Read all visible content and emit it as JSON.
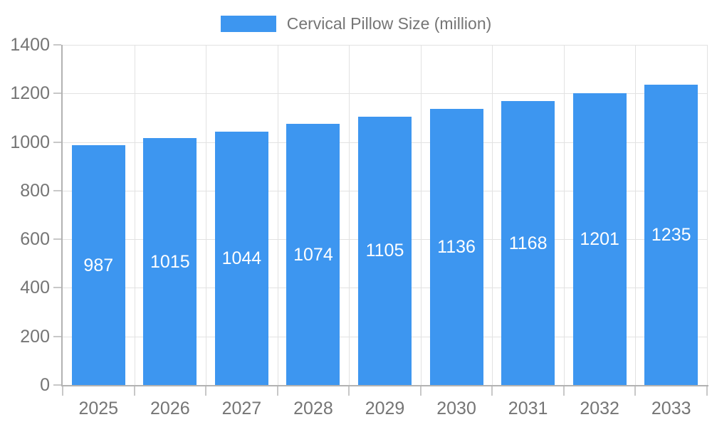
{
  "legend": {
    "label": "Cervical Pillow Size (million)",
    "swatch_color": "#3d96f0"
  },
  "chart_data": {
    "type": "bar",
    "title": "",
    "xlabel": "",
    "ylabel": "",
    "categories": [
      "2025",
      "2026",
      "2027",
      "2028",
      "2029",
      "2030",
      "2031",
      "2032",
      "2033"
    ],
    "series": [
      {
        "name": "Cervical Pillow Size (million)",
        "values": [
          987,
          1015,
          1044,
          1074,
          1105,
          1136,
          1168,
          1201,
          1235
        ]
      }
    ],
    "ylim": [
      0,
      1400
    ],
    "yticks": [
      0,
      200,
      400,
      600,
      800,
      1000,
      1200,
      1400
    ],
    "grid": true,
    "legend_position": "top",
    "bar_color": "#3d96f0",
    "value_label_color": "#ffffff",
    "axis_text_color": "#757575",
    "gridline_color": "#e2e2e2",
    "axis_line_color": "#b2b2b2",
    "tick_color": "#c8c8c8"
  }
}
